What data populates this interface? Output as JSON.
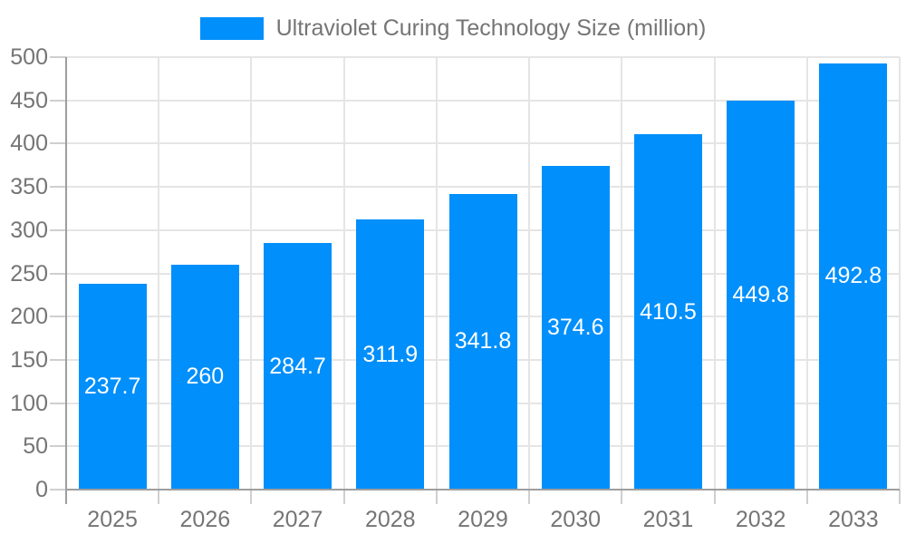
{
  "chart_data": {
    "type": "bar",
    "title": "Ultraviolet Curing Technology Size (million)",
    "categories": [
      "2025",
      "2026",
      "2027",
      "2028",
      "2029",
      "2030",
      "2031",
      "2032",
      "2033"
    ],
    "values": [
      237.7,
      260,
      284.7,
      311.9,
      341.8,
      374.6,
      410.5,
      449.8,
      492.8
    ],
    "xlabel": "",
    "ylabel": "",
    "ylim": [
      0,
      500
    ],
    "yticks": [
      0,
      50,
      100,
      150,
      200,
      250,
      300,
      350,
      400,
      450,
      500
    ],
    "grid": true,
    "legend_position": "top-center",
    "colors": {
      "bar": "#008FFB",
      "bar_label_text": "#FFFFFF",
      "axis_text": "#757575",
      "gridline": "#E5E5E5",
      "axis_line": "#9E9E9E",
      "tick": "#CFCFCF",
      "background": "#FFFFFF"
    }
  }
}
